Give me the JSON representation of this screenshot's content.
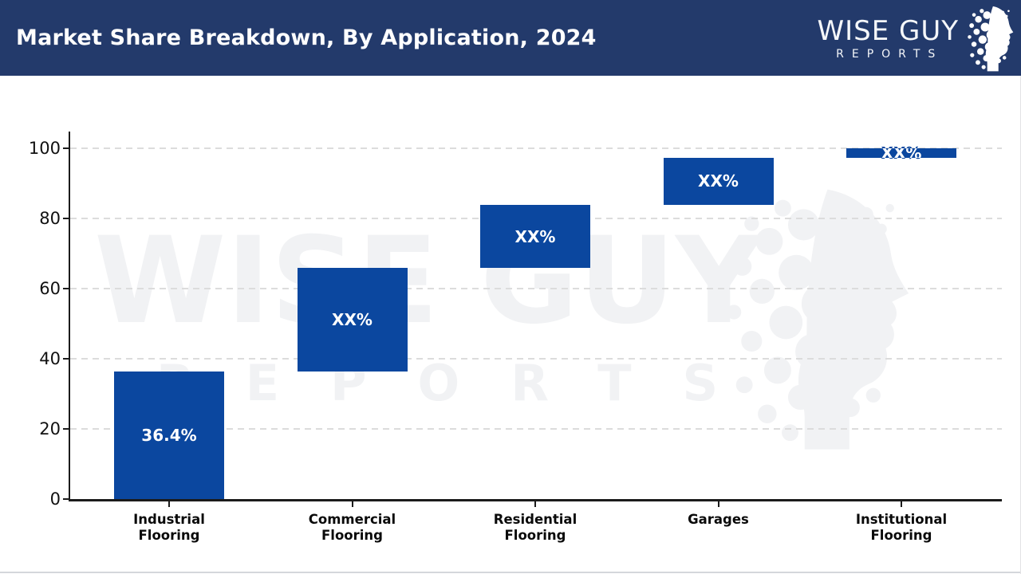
{
  "header": {
    "title": "Market Share Breakdown, By Application, 2024",
    "logo": {
      "line1": "WISE GUY",
      "line2": "REPORTS"
    }
  },
  "watermark": {
    "line1": "WISE GUY",
    "line2": "REPORTS"
  },
  "colors": {
    "header_bg": "#233a6b",
    "bar": "#0b479f",
    "bar_label": "#ffffff",
    "grid": "#dcdcdc",
    "axis": "#1b1b1b",
    "tick_label": "#111111",
    "watermark": "#f1f2f4"
  },
  "chart_data": {
    "type": "bar",
    "subtype": "stacked-waterfall",
    "title": "Market Share Breakdown, By Application, 2024",
    "xlabel": "",
    "ylabel": "",
    "categories": [
      "Industrial Flooring",
      "Commercial Flooring",
      "Residential Flooring",
      "Garages",
      "Institutional Flooring"
    ],
    "category_lines": [
      [
        "Industrial",
        "Flooring"
      ],
      [
        "Commercial",
        "Flooring"
      ],
      [
        "Residential",
        "Flooring"
      ],
      [
        "Garages"
      ],
      [
        "Institutional",
        "Flooring"
      ]
    ],
    "segments": [
      {
        "category": "Industrial Flooring",
        "label": "36.4%",
        "start": 0,
        "end": 36.4
      },
      {
        "category": "Commercial Flooring",
        "label": "XX%",
        "start": 36.4,
        "end": 65.8
      },
      {
        "category": "Residential Flooring",
        "label": "XX%",
        "start": 65.8,
        "end": 83.9
      },
      {
        "category": "Garages",
        "label": "XX%",
        "start": 83.9,
        "end": 97.3
      },
      {
        "category": "Institutional Flooring",
        "label": "XX%",
        "start": 97.3,
        "end": 100
      }
    ],
    "yticks": [
      0,
      20,
      40,
      60,
      80,
      100
    ],
    "ylim": [
      0,
      104.5
    ],
    "grid": "horizontal-dashed",
    "legend": false
  }
}
